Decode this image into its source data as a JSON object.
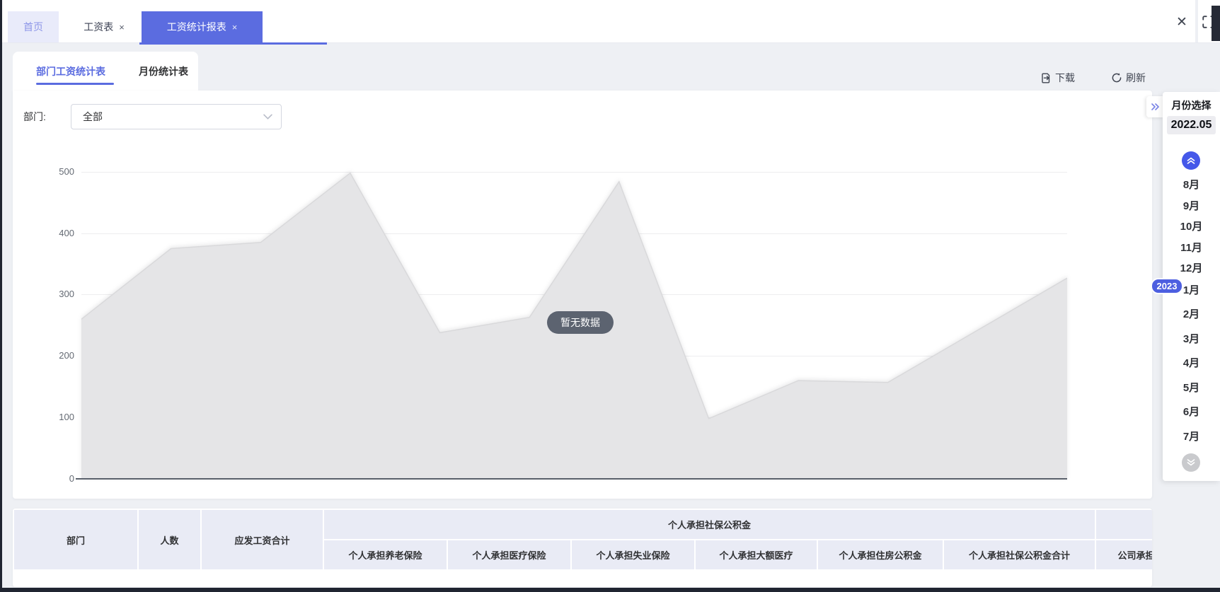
{
  "tabs": [
    {
      "label": "首页"
    },
    {
      "label": "工资表",
      "close": "×"
    },
    {
      "label": "工资统计报表",
      "close": "×"
    }
  ],
  "window": {
    "close": "✕"
  },
  "subtabs": [
    {
      "label": "部门工资统计表"
    },
    {
      "label": "月份统计表"
    }
  ],
  "toolbar": {
    "download": "下载",
    "refresh": "刷新"
  },
  "filter": {
    "label": "部门:",
    "value": "全部"
  },
  "chart_data": {
    "type": "area",
    "x_labels": [],
    "values": [
      260,
      375,
      385,
      498,
      238,
      263,
      484,
      98,
      160,
      157,
      242,
      327
    ],
    "ylim": [
      0,
      500
    ],
    "yticks": [
      0,
      100,
      200,
      300,
      400,
      500
    ],
    "grid": true,
    "area_color": "#e5e5e7",
    "line_color": "#d9d9db",
    "empty_text": "暂无数据"
  },
  "month_panel": {
    "title": "月份选择",
    "current": "2022.05",
    "months_top": [
      "8月",
      "9月",
      "10月",
      "11月",
      "12月"
    ],
    "year_badge": "2023",
    "months_bottom": [
      "1月",
      "2月",
      "3月",
      "4月",
      "5月",
      "6月",
      "7月"
    ]
  },
  "table": {
    "department": "部门",
    "headcount": "人数",
    "salary_total": "应发工资合计",
    "personal_group": "个人承担社保公积金",
    "personal_cols": [
      "个人承担养老保险",
      "个人承担医疗保险",
      "个人承担失业保险",
      "个人承担大额医疗",
      "个人承担住房公积金",
      "个人承担社保公积金合计"
    ],
    "company_group": "",
    "company_col": "公司承担"
  },
  "colors": {
    "primary": "#5b6ce0",
    "accent_blue": "#4558e9",
    "tooltip_bg": "#5c6370",
    "table_header_bg": "#e9ebf5",
    "page_bg": "#eef0f4",
    "area_fill": "#e5e5e7"
  }
}
